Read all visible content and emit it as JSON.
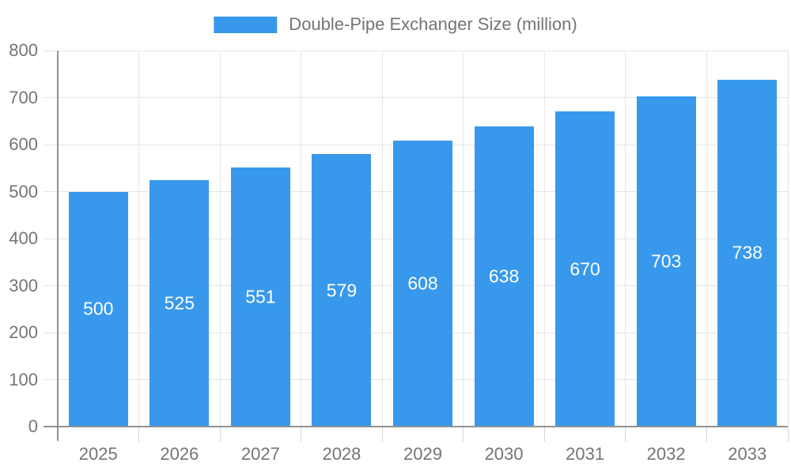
{
  "chart_data": {
    "type": "bar",
    "title": "Double-Pipe Exchanger Size (million)",
    "categories": [
      "2025",
      "2026",
      "2027",
      "2028",
      "2029",
      "2030",
      "2031",
      "2032",
      "2033"
    ],
    "values": [
      500,
      525,
      551,
      579,
      608,
      638,
      670,
      703,
      738
    ],
    "xlabel": "",
    "ylabel": "",
    "ylim": [
      0,
      800
    ],
    "yticks": [
      0,
      100,
      200,
      300,
      400,
      500,
      600,
      700,
      800
    ],
    "grid": true,
    "legend_position": "top-center",
    "legend_entries": [
      "Double-Pipe Exchanger Size (million)"
    ],
    "bar_color": "#3899ec",
    "bar_label_color": "#ffffff",
    "axis_text_color": "#757575",
    "axis_line_color": "#929292",
    "gridline_color": "#e6e6e6"
  }
}
